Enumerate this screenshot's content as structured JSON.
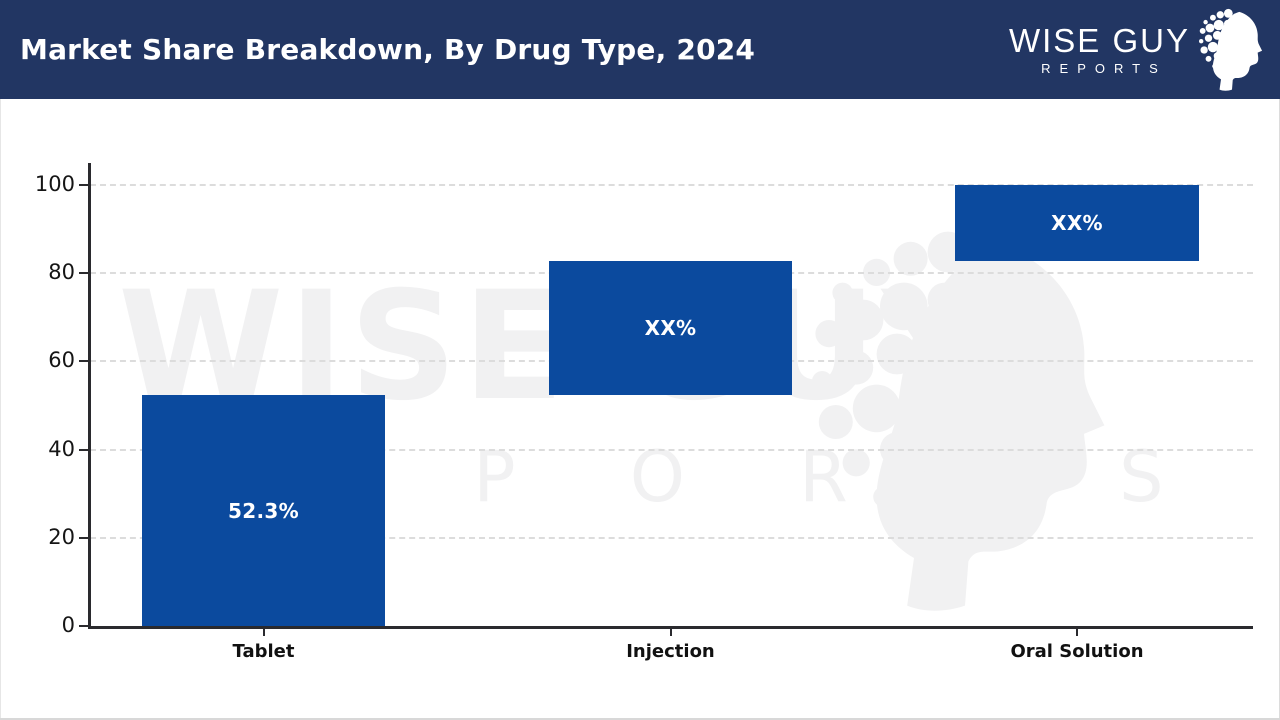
{
  "header": {
    "title": "Market Share Breakdown, By Drug Type, 2024",
    "logo": {
      "line1": "WISE GUY",
      "line2": "REPORTS"
    }
  },
  "watermark": {
    "line1": "WISE GUY",
    "line2": "R E P O R T S"
  },
  "colors": {
    "header_bg": "#223663",
    "bar": "#0B4A9E",
    "bar_label": "#FFFFFF",
    "grid": "#DCDCDC",
    "axis": "#2A2A2E",
    "tick_label": "#151515",
    "watermark": "#F1F1F2",
    "title_text": "#FFFFFF"
  },
  "chart_data": {
    "type": "bar",
    "subtype": "floating-waterfall",
    "title": "Market Share Breakdown, By Drug Type, 2024",
    "xlabel": "",
    "ylabel": "",
    "categories": [
      "Tablet",
      "Injection",
      "Oral Solution"
    ],
    "series": [
      {
        "name": "Market share (%)",
        "segments": [
          {
            "category": "Tablet",
            "start": 0,
            "end": 52.3,
            "label": "52.3%"
          },
          {
            "category": "Injection",
            "start": 52.3,
            "end": 82.8,
            "label": "XX%"
          },
          {
            "category": "Oral Solution",
            "start": 82.8,
            "end": 100,
            "label": "XX%"
          }
        ]
      }
    ],
    "ylim": [
      0,
      100
    ],
    "yticks": [
      0,
      20,
      40,
      60,
      80,
      100
    ],
    "grid": {
      "horizontal": true,
      "style": "dashed"
    },
    "legend": null
  }
}
